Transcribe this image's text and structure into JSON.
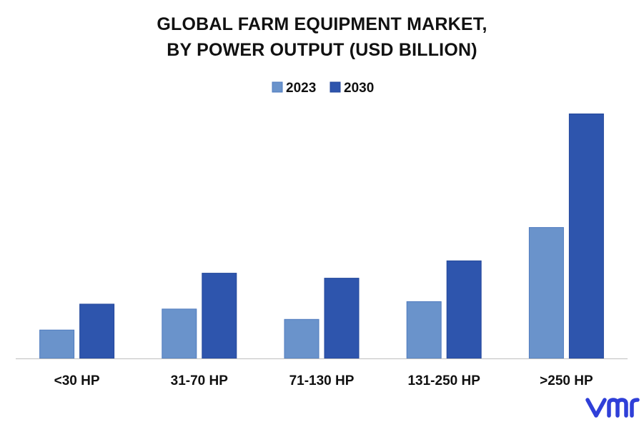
{
  "chart_data": {
    "type": "bar",
    "title_lines": [
      "GLOBAL FARM EQUIPMENT MARKET,",
      "BY POWER OUTPUT (USD BILLION)"
    ],
    "xlabel": "",
    "ylabel": "",
    "categories": [
      "<30 HP",
      "31-70 HP",
      "71-130 HP",
      "131-250 HP",
      ">250 HP"
    ],
    "series": [
      {
        "name": "2023",
        "color": "#6a93cb",
        "values": [
          11.5,
          20.0,
          15.8,
          23.0,
          53.0
        ]
      },
      {
        "name": "2030",
        "color": "#2e55ad",
        "values": [
          22.0,
          34.5,
          32.5,
          39.5,
          99.0
        ]
      }
    ],
    "ylim": [
      0,
      100
    ],
    "grid": false,
    "legend_position": "top-center"
  },
  "brand": {
    "logo_text": "vmr",
    "logo_color": "#2f3fd8"
  }
}
